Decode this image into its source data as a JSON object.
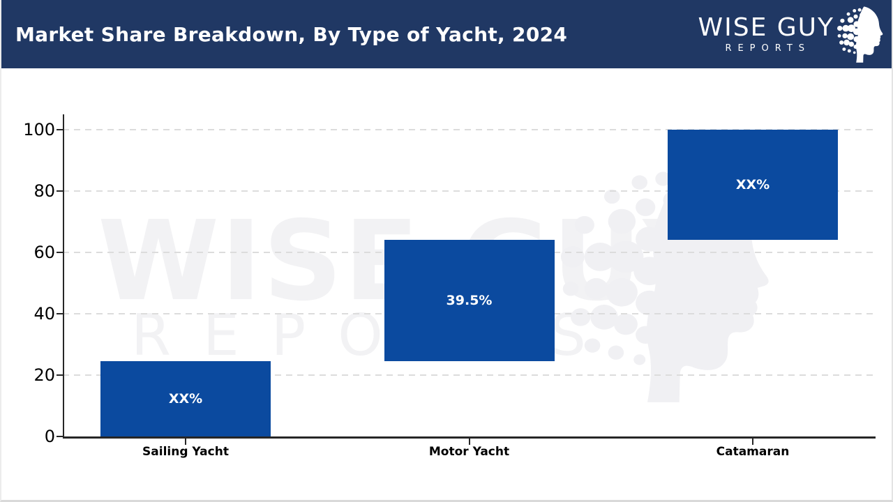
{
  "header": {
    "title": "Market Share Breakdown, By Type of Yacht, 2024",
    "logo": {
      "line1": "WISE GUY",
      "line2": "REPORTS"
    }
  },
  "watermark": {
    "line1": "WISE GUY",
    "line2": "REPORTS"
  },
  "chart_data": {
    "type": "bar",
    "subtype": "floating_waterfall_bars",
    "title": "Market Share Breakdown, By Type of Yacht, 2024",
    "categories": [
      "Sailing Yacht",
      "Motor Yacht",
      "Catamaran"
    ],
    "series": [
      {
        "name": "Market Share (%)",
        "ranges": [
          [
            0,
            24.5
          ],
          [
            24.5,
            64.0
          ],
          [
            64.0,
            100.0
          ]
        ],
        "bar_labels": [
          "XX%",
          "39.5%",
          "XX%"
        ]
      }
    ],
    "ylim": [
      0,
      100
    ],
    "yticks": [
      0,
      20,
      40,
      60,
      80,
      100
    ],
    "xlabel": "",
    "ylabel": "",
    "grid": {
      "horizontal": true,
      "style": "dashed"
    },
    "legend": "none",
    "bar_color": "#0b4a9f",
    "bar_label_color": "#ffffff"
  },
  "colors": {
    "header_bg": "#203864",
    "bar": "#0b4a9f",
    "grid": "#dcdcdc",
    "axis": "#262626",
    "watermark": "#f2f2f4"
  }
}
